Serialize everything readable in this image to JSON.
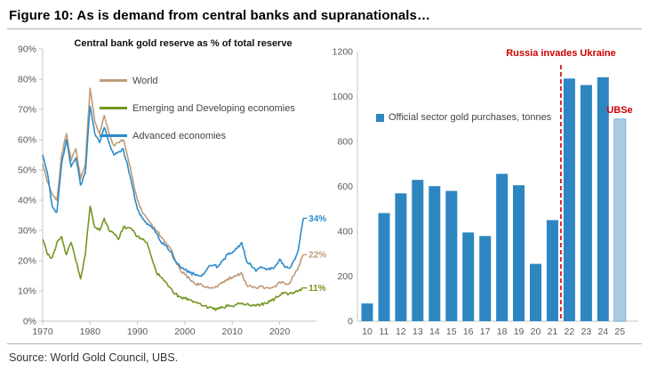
{
  "figure": {
    "title": "Figure 10: As is demand from central banks and supranationals…",
    "source": "Source: World Gold Council, UBS."
  },
  "colors": {
    "world": "#BE9B78",
    "emerging": "#739622",
    "advanced": "#2D8CC9",
    "bar": "#2E86C1",
    "bar_forecast": "#A9CCE3",
    "bar_forecast_border": "#7DAFD4",
    "red": "#CC0000",
    "axis_line": "#C5C5C5",
    "tick_label": "#595959"
  },
  "chart_data": [
    {
      "type": "line",
      "title": "Central bank gold reserve as % of total reserve",
      "x_start": 1970,
      "x_end": 2025,
      "xticks": [
        1970,
        1980,
        1990,
        2000,
        2010,
        2020
      ],
      "ylim": [
        0,
        90
      ],
      "ytick_step": 10,
      "ytick_suffix": "%",
      "grid": false,
      "legend_position": "upper-center",
      "series": [
        {
          "name": "World",
          "color_key": "world",
          "end_label": "22%",
          "values": [
            52,
            46,
            42,
            40,
            55,
            62,
            53,
            57,
            47,
            52,
            77,
            66,
            62,
            68,
            62,
            58,
            59,
            60,
            54,
            47,
            40,
            36,
            34,
            32,
            30,
            28,
            26,
            24,
            20,
            17,
            15.5,
            14,
            12.5,
            12,
            11.5,
            11,
            11,
            11.5,
            13,
            14,
            14.5,
            15,
            16,
            12,
            11.5,
            11,
            11.5,
            11,
            11,
            11.5,
            13,
            12.5,
            12.5,
            15,
            18,
            22
          ]
        },
        {
          "name": "Emerging and Developing economies",
          "color_key": "emerging",
          "end_label": "11%",
          "values": [
            27,
            22,
            21,
            26,
            28,
            22,
            26,
            20,
            14,
            22,
            38,
            31,
            30,
            34,
            30,
            29,
            27,
            31,
            31,
            30,
            28,
            27,
            26,
            21,
            16,
            14.5,
            13,
            11,
            9,
            8,
            7.5,
            7,
            6.5,
            6,
            5,
            4.5,
            4,
            4,
            4.5,
            5,
            5,
            5.5,
            6,
            5.5,
            5,
            5,
            5.5,
            6,
            6.5,
            7.5,
            8.5,
            9.5,
            9,
            9.5,
            10,
            11
          ]
        },
        {
          "name": "Advanced economies",
          "color_key": "advanced",
          "end_label": "34%",
          "values": [
            55,
            49,
            38,
            36,
            52,
            60,
            51,
            54,
            45,
            49,
            71,
            62,
            59,
            64,
            59,
            55,
            56,
            57,
            51,
            44,
            37,
            34,
            32,
            31,
            29,
            26,
            25,
            23,
            20,
            18,
            17,
            16,
            15.5,
            15,
            15.5,
            18,
            18.5,
            18,
            20,
            22,
            22.5,
            24,
            26,
            20,
            18.5,
            16.5,
            18,
            17.5,
            17,
            18,
            20.5,
            18,
            17.5,
            20,
            24,
            34
          ]
        }
      ]
    },
    {
      "type": "bar",
      "legend": "Official sector gold purchases, tonnes",
      "categories": [
        "10",
        "11",
        "12",
        "13",
        "14",
        "15",
        "16",
        "17",
        "18",
        "19",
        "20",
        "21",
        "22",
        "23",
        "24",
        "25"
      ],
      "values": [
        79,
        481,
        569,
        629,
        601,
        580,
        395,
        379,
        656,
        605,
        255,
        450,
        1080,
        1051,
        1086,
        900
      ],
      "forecast_index": 15,
      "forecast_label": "UBSe",
      "annotation": {
        "text": "Russia invades Ukraine",
        "position": "between 21 and 22"
      },
      "ylim": [
        0,
        1200
      ],
      "ytick_step": 200,
      "grid": false
    }
  ]
}
